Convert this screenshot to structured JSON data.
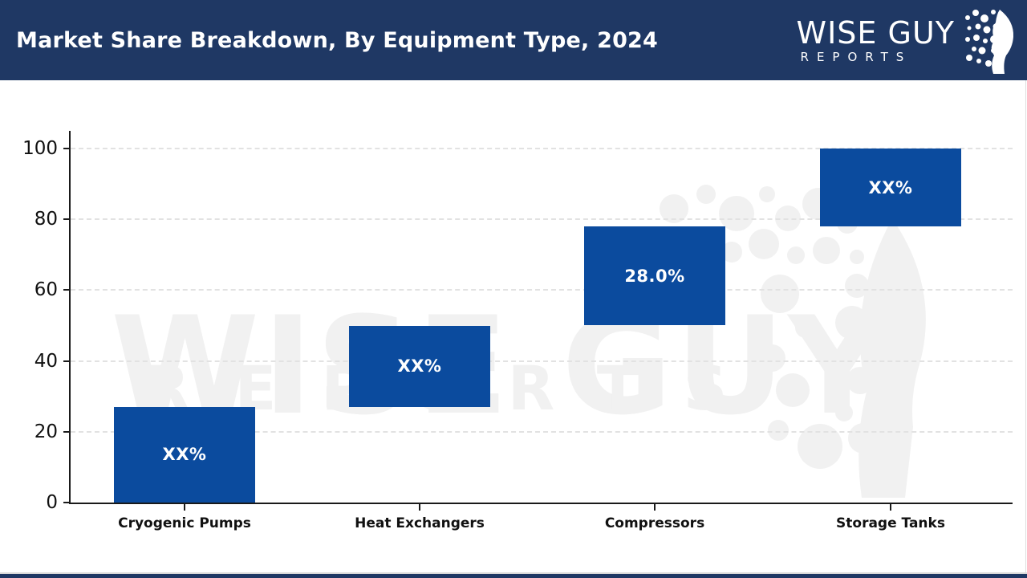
{
  "header": {
    "title": "Market Share Breakdown, By Equipment Type, 2024",
    "logo": {
      "name": "WISE GUY",
      "sub": "REPORTS"
    }
  },
  "watermark": {
    "line1": "WISE GUY",
    "line2": "REPORTS"
  },
  "colors": {
    "header_bg": "#1F3864",
    "bar": "#0B4B9E",
    "grid": "#E2E2E2",
    "axis": "#1A1A1A",
    "watermark": "#F1F1F1"
  },
  "chart_data": {
    "type": "bar",
    "variant": "floating-waterfall",
    "title": "Market Share Breakdown, By Equipment Type, 2024",
    "categories": [
      "Cryogenic Pumps",
      "Heat Exchangers",
      "Compressors",
      "Storage Tanks"
    ],
    "segments": [
      {
        "category": "Cryogenic Pumps",
        "start": 0,
        "end": 27,
        "label": "XX%"
      },
      {
        "category": "Heat Exchangers",
        "start": 27,
        "end": 50,
        "label": "XX%"
      },
      {
        "category": "Compressors",
        "start": 50,
        "end": 78,
        "label": "28.0%"
      },
      {
        "category": "Storage Tanks",
        "start": 78,
        "end": 100,
        "label": "XX%"
      }
    ],
    "yticks": [
      0,
      20,
      40,
      60,
      80,
      100
    ],
    "ylim": [
      0,
      105
    ],
    "grid": "dashed-horizontal",
    "legend": "none"
  }
}
